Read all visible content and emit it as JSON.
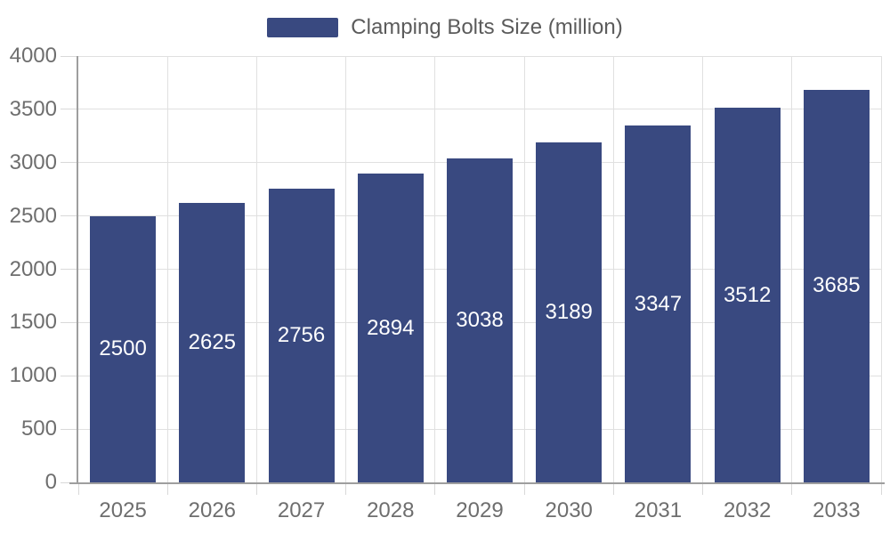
{
  "legend": {
    "label": "Clamping Bolts Size (million)",
    "position": "top"
  },
  "colors": {
    "bar": "#394980",
    "value_label": "#ffffff",
    "axis_label": "#6e6e6e",
    "legend_text": "#5b5b5b",
    "axis_line": "#9e9e9e",
    "grid_line": "#e0e0e0",
    "tick_line": "#d9d9d9",
    "background": "#ffffff"
  },
  "chart_data": {
    "type": "bar",
    "title": "Clamping Bolts Size (million)",
    "categories": [
      "2025",
      "2026",
      "2027",
      "2028",
      "2029",
      "2030",
      "2031",
      "2032",
      "2033"
    ],
    "series": [
      {
        "name": "Clamping Bolts Size (million)",
        "values": [
          2500,
          2625,
          2756,
          2894,
          3038,
          3189,
          3347,
          3512,
          3685
        ]
      }
    ],
    "xlabel": "",
    "ylabel": "",
    "ylim": [
      0,
      4000
    ],
    "yticks": [
      0,
      500,
      1000,
      1500,
      2000,
      2500,
      3000,
      3500,
      4000
    ],
    "grid": true,
    "legend_position": "top",
    "value_label_position": "inside-center"
  }
}
